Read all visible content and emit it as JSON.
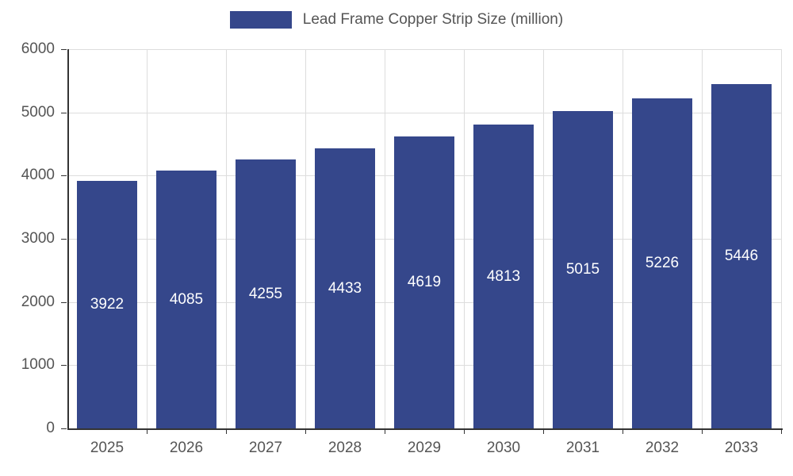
{
  "chart_data": {
    "type": "bar",
    "title": "Lead Frame Copper Strip Size (million)",
    "categories": [
      "2025",
      "2026",
      "2027",
      "2028",
      "2029",
      "2030",
      "2031",
      "2032",
      "2033"
    ],
    "values": [
      3922,
      4085,
      4255,
      4433,
      4619,
      4813,
      5015,
      5226,
      5446
    ],
    "ylim": [
      0,
      6000
    ],
    "yticks": [
      0,
      1000,
      2000,
      3000,
      4000,
      5000,
      6000
    ],
    "grid": true,
    "legend_position": "top",
    "colors": {
      "bar": "#35478B",
      "bar_label": "#ffffff",
      "axis": "#333333",
      "grid": "#dddddd",
      "text": "#555555"
    }
  }
}
